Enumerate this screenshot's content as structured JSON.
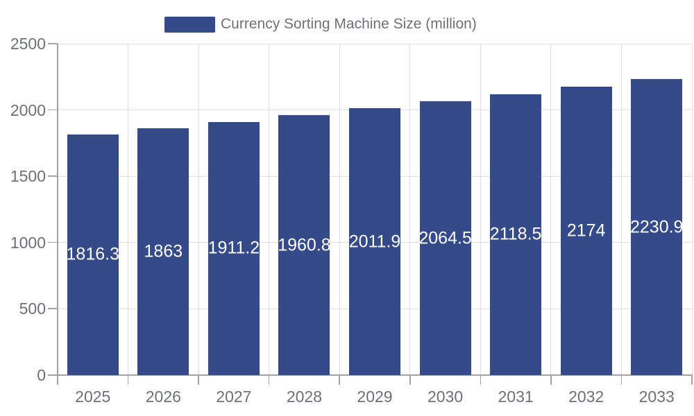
{
  "legend": {
    "label": "Currency Sorting Machine Size (million)",
    "swatch_color": "#354a89"
  },
  "chart_data": {
    "type": "bar",
    "title": "Currency Sorting Machine Size (million)",
    "categories": [
      "2025",
      "2026",
      "2027",
      "2028",
      "2029",
      "2030",
      "2031",
      "2032",
      "2033"
    ],
    "series": [
      {
        "name": "Currency Sorting Machine Size (million)",
        "values": [
          1816.3,
          1863,
          1911.2,
          1960.8,
          2011.9,
          2064.5,
          2118.5,
          2174,
          2230.9
        ],
        "value_labels": [
          "1816.3",
          "1863",
          "1911.2",
          "1960.8",
          "2011.9",
          "2064.5",
          "2118.5",
          "2174",
          "2230.9"
        ]
      }
    ],
    "xlabel": "",
    "ylabel": "",
    "ylim": [
      0,
      2500
    ],
    "yticks": [
      0,
      500,
      1000,
      1500,
      2000,
      2500
    ],
    "grid": true,
    "legend_position": "top-center",
    "value_label_position": "inside-middle"
  },
  "colors": {
    "bar": "#354a89",
    "grid_line": "#e0e0e0",
    "axis_line": "#a3a3a3",
    "tick_label": "#6e7079",
    "value_label": "#ffffff",
    "background": "#ffffff"
  }
}
